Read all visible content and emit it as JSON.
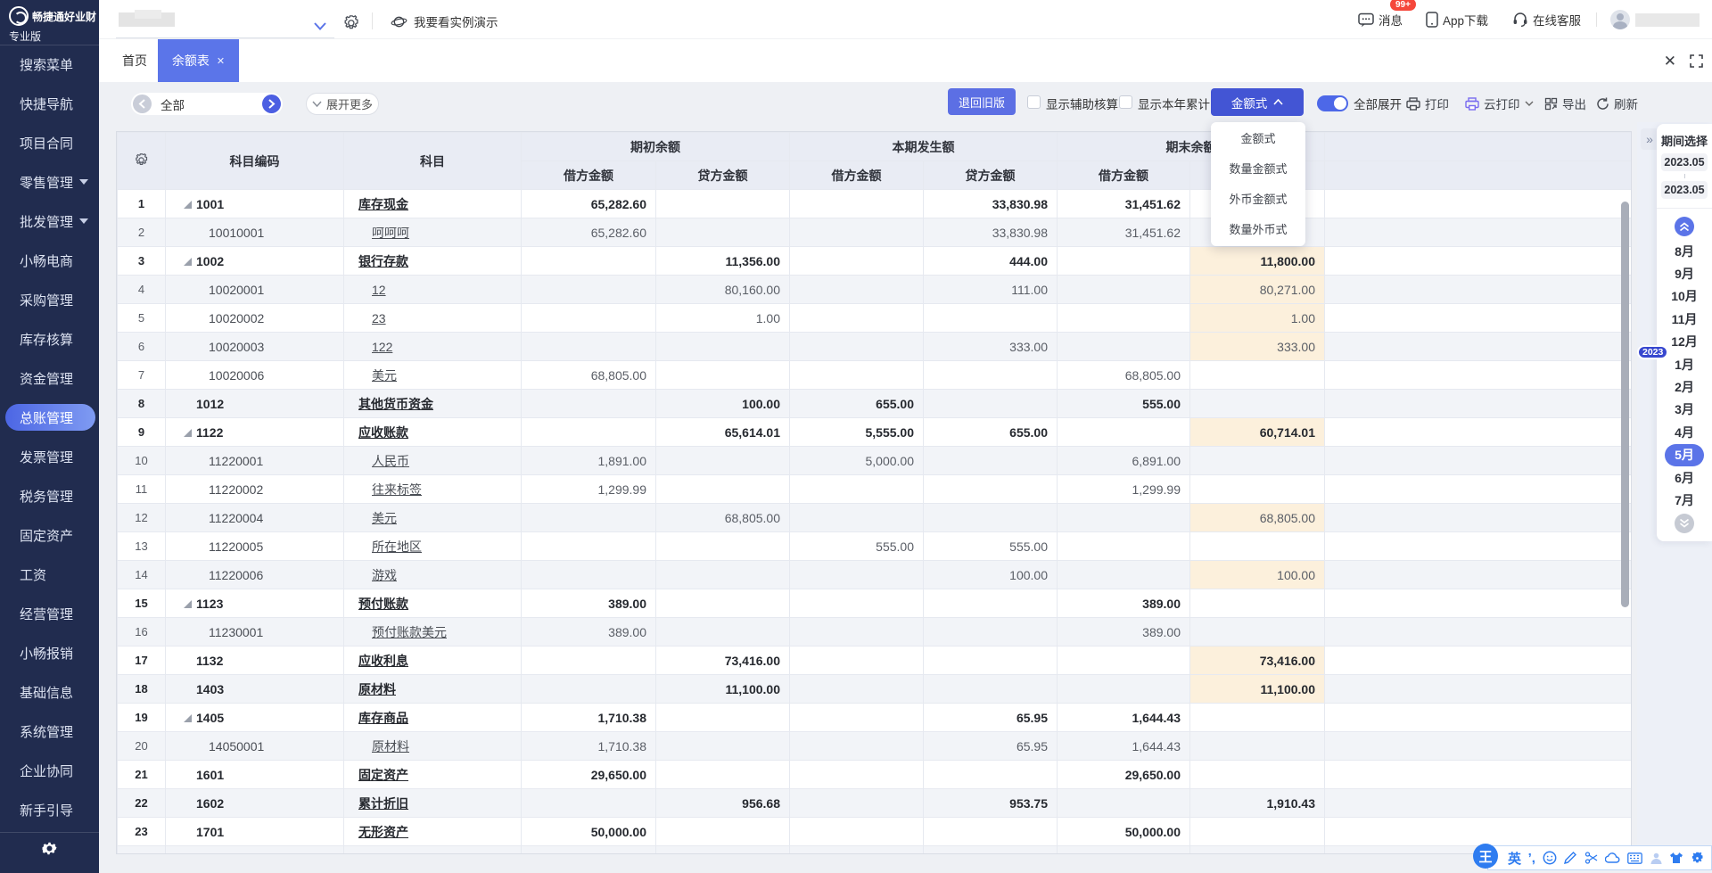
{
  "sidebar": {
    "logo_title": "畅捷通好业财",
    "logo_subtitle": "专业版",
    "items": [
      {
        "label": "搜索菜单",
        "caret": false,
        "active": false
      },
      {
        "label": "快捷导航",
        "caret": false,
        "active": false
      },
      {
        "label": "项目合同",
        "caret": false,
        "active": false
      },
      {
        "label": "零售管理",
        "caret": true,
        "active": false
      },
      {
        "label": "批发管理",
        "caret": true,
        "active": false
      },
      {
        "label": "小畅电商",
        "caret": false,
        "active": false
      },
      {
        "label": "采购管理",
        "caret": false,
        "active": false
      },
      {
        "label": "库存核算",
        "caret": false,
        "active": false
      },
      {
        "label": "资金管理",
        "caret": false,
        "active": false
      },
      {
        "label": "总账管理",
        "caret": false,
        "active": true
      },
      {
        "label": "发票管理",
        "caret": false,
        "active": false
      },
      {
        "label": "税务管理",
        "caret": false,
        "active": false
      },
      {
        "label": "固定资产",
        "caret": false,
        "active": false
      },
      {
        "label": "工资",
        "caret": false,
        "active": false
      },
      {
        "label": "经营管理",
        "caret": false,
        "active": false
      },
      {
        "label": "小畅报销",
        "caret": false,
        "active": false
      },
      {
        "label": "基础信息",
        "caret": false,
        "active": false
      },
      {
        "label": "系统管理",
        "caret": false,
        "active": false
      },
      {
        "label": "企业协同",
        "caret": false,
        "active": false
      },
      {
        "label": "新手引导",
        "caret": false,
        "active": false
      }
    ]
  },
  "topbar": {
    "demo_link": "我要看实例演示",
    "messages_label": "消息",
    "messages_badge": "99+",
    "app_download": "App下载",
    "online_support": "在线客服"
  },
  "tabs": {
    "home": "首页",
    "active": "余额表"
  },
  "toolbar": {
    "filter_all": "全部",
    "expand_more": "展开更多",
    "back_old_version": "退回旧版",
    "show_aux": "显示辅助核算",
    "show_ytd": "显示本年累计",
    "amount_mode": "金额式",
    "expand_all": "全部展开",
    "print": "打印",
    "cloud_print": "云打印",
    "export": "导出",
    "refresh": "刷新",
    "mode_options": [
      "金额式",
      "数量金额式",
      "外币金额式",
      "数量外币式"
    ]
  },
  "period_panel": {
    "title": "期间选择",
    "from": "2023.05",
    "to": "2023.05",
    "year_badge": "2023",
    "months": [
      "8月",
      "9月",
      "10月",
      "11月",
      "12月",
      "1月",
      "2月",
      "3月",
      "4月",
      "5月",
      "6月",
      "7月"
    ],
    "active_month": "5月"
  },
  "table": {
    "col_groups": [
      "期初余额",
      "本期发生额",
      "期末余额"
    ],
    "col_headers": [
      "科目编码",
      "科目",
      "借方金额",
      "贷方金额",
      "借方金额",
      "贷方金额",
      "借方金额",
      "贷方金额"
    ],
    "rows": [
      {
        "no": "1",
        "code": "1001",
        "name": "库存现金",
        "level": 1,
        "expandable": true,
        "values": [
          "65,282.60",
          "",
          "",
          "33,830.98",
          "31,451.62",
          ""
        ],
        "warn": false
      },
      {
        "no": "2",
        "code": "10010001",
        "name": "呵呵呵",
        "level": 2,
        "expandable": false,
        "values": [
          "65,282.60",
          "",
          "",
          "33,830.98",
          "31,451.62",
          ""
        ],
        "warn": false
      },
      {
        "no": "3",
        "code": "1002",
        "name": "银行存款",
        "level": 1,
        "expandable": true,
        "values": [
          "",
          "11,356.00",
          "",
          "444.00",
          "",
          "11,800.00"
        ],
        "warn": true
      },
      {
        "no": "4",
        "code": "10020001",
        "name": "12",
        "level": 2,
        "expandable": false,
        "values": [
          "",
          "80,160.00",
          "",
          "111.00",
          "",
          "80,271.00"
        ],
        "warn": true
      },
      {
        "no": "5",
        "code": "10020002",
        "name": "23",
        "level": 2,
        "expandable": false,
        "values": [
          "",
          "1.00",
          "",
          "",
          "",
          "1.00"
        ],
        "warn": true
      },
      {
        "no": "6",
        "code": "10020003",
        "name": "122",
        "level": 2,
        "expandable": false,
        "values": [
          "",
          "",
          "",
          "333.00",
          "",
          "333.00"
        ],
        "warn": true
      },
      {
        "no": "7",
        "code": "10020006",
        "name": "美元",
        "level": 2,
        "expandable": false,
        "values": [
          "68,805.00",
          "",
          "",
          "",
          "68,805.00",
          ""
        ],
        "warn": false
      },
      {
        "no": "8",
        "code": "1012",
        "name": "其他货币资金",
        "level": 1,
        "expandable": false,
        "values": [
          "",
          "100.00",
          "655.00",
          "",
          "555.00",
          ""
        ],
        "warn": false
      },
      {
        "no": "9",
        "code": "1122",
        "name": "应收账款",
        "level": 1,
        "expandable": true,
        "values": [
          "",
          "65,614.01",
          "5,555.00",
          "655.00",
          "",
          "60,714.01"
        ],
        "warn": true
      },
      {
        "no": "10",
        "code": "11220001",
        "name": "人民币",
        "level": 2,
        "expandable": false,
        "values": [
          "1,891.00",
          "",
          "5,000.00",
          "",
          "6,891.00",
          ""
        ],
        "warn": false
      },
      {
        "no": "11",
        "code": "11220002",
        "name": "往来标签",
        "level": 2,
        "expandable": false,
        "values": [
          "1,299.99",
          "",
          "",
          "",
          "1,299.99",
          ""
        ],
        "warn": false
      },
      {
        "no": "12",
        "code": "11220004",
        "name": "美元",
        "level": 2,
        "expandable": false,
        "values": [
          "",
          "68,805.00",
          "",
          "",
          "",
          "68,805.00"
        ],
        "warn": true
      },
      {
        "no": "13",
        "code": "11220005",
        "name": "所在地区",
        "level": 2,
        "expandable": false,
        "values": [
          "",
          "",
          "555.00",
          "555.00",
          "",
          ""
        ],
        "warn": false
      },
      {
        "no": "14",
        "code": "11220006",
        "name": "游戏",
        "level": 2,
        "expandable": false,
        "values": [
          "",
          "",
          "",
          "100.00",
          "",
          "100.00"
        ],
        "warn": true
      },
      {
        "no": "15",
        "code": "1123",
        "name": "预付账款",
        "level": 1,
        "expandable": true,
        "values": [
          "389.00",
          "",
          "",
          "",
          "389.00",
          ""
        ],
        "warn": false
      },
      {
        "no": "16",
        "code": "11230001",
        "name": "预付账款美元",
        "level": 2,
        "expandable": false,
        "values": [
          "389.00",
          "",
          "",
          "",
          "389.00",
          ""
        ],
        "warn": false
      },
      {
        "no": "17",
        "code": "1132",
        "name": "应收利息",
        "level": 1,
        "expandable": false,
        "values": [
          "",
          "73,416.00",
          "",
          "",
          "",
          "73,416.00"
        ],
        "warn": true
      },
      {
        "no": "18",
        "code": "1403",
        "name": "原材料",
        "level": 1,
        "expandable": false,
        "values": [
          "",
          "11,100.00",
          "",
          "",
          "",
          "11,100.00"
        ],
        "warn": true
      },
      {
        "no": "19",
        "code": "1405",
        "name": "库存商品",
        "level": 1,
        "expandable": true,
        "values": [
          "1,710.38",
          "",
          "",
          "65.95",
          "1,644.43",
          ""
        ],
        "warn": false
      },
      {
        "no": "20",
        "code": "14050001",
        "name": "原材料",
        "level": 2,
        "expandable": false,
        "values": [
          "1,710.38",
          "",
          "",
          "65.95",
          "1,644.43",
          ""
        ],
        "warn": false
      },
      {
        "no": "21",
        "code": "1601",
        "name": "固定资产",
        "level": 1,
        "expandable": false,
        "values": [
          "29,650.00",
          "",
          "",
          "",
          "29,650.00",
          ""
        ],
        "warn": false
      },
      {
        "no": "22",
        "code": "1602",
        "name": "累计折旧",
        "level": 1,
        "expandable": false,
        "values": [
          "",
          "956.68",
          "",
          "953.75",
          "",
          "1,910.43"
        ],
        "warn": false
      },
      {
        "no": "23",
        "code": "1701",
        "name": "无形资产",
        "level": 1,
        "expandable": false,
        "values": [
          "50,000.00",
          "",
          "",
          "",
          "50,000.00",
          ""
        ],
        "warn": false
      }
    ]
  },
  "ime": {
    "logo": "王",
    "lang": "英"
  },
  "colors": {
    "accent_blue": "#5b74e8",
    "dark_blue_button": "#4355d4",
    "warn_cell": "#fcf0dc",
    "sidebar_bg": "#212c4f",
    "badge_red": "#f5473b"
  }
}
